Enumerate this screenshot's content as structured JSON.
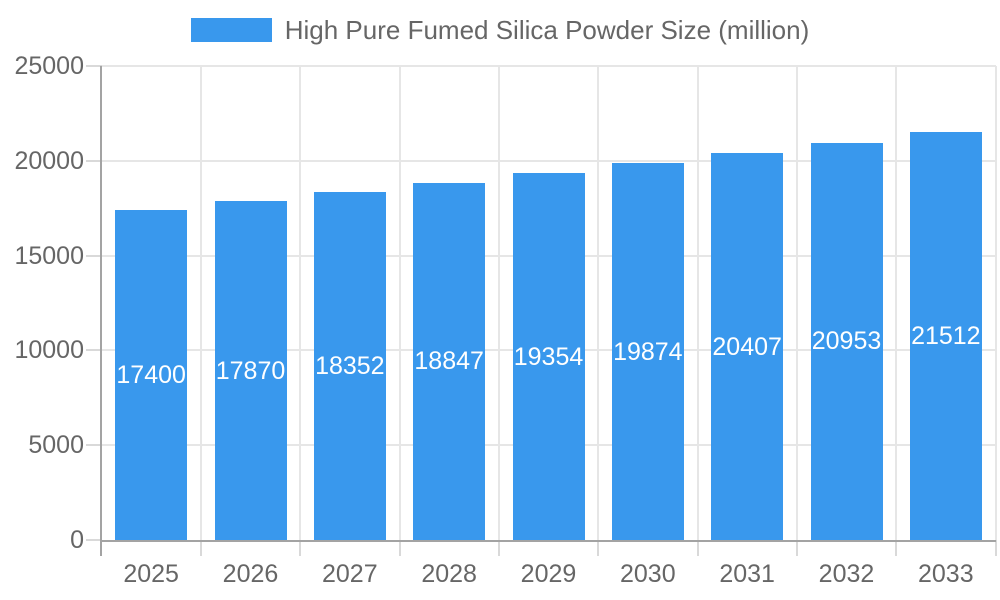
{
  "chart_data": {
    "type": "bar",
    "title": "High Pure Fumed Silica Powder Size (million)",
    "categories": [
      "2025",
      "2026",
      "2027",
      "2028",
      "2029",
      "2030",
      "2031",
      "2032",
      "2033"
    ],
    "values": [
      17400,
      17870,
      18352,
      18847,
      19354,
      19874,
      20407,
      20953,
      21512
    ],
    "xlabel": "",
    "ylabel": "",
    "ylim": [
      0,
      25000
    ],
    "yticks": [
      0,
      5000,
      10000,
      15000,
      20000,
      25000
    ],
    "grid": true,
    "legend_position": "top-center",
    "value_label_position": "inside-center",
    "colors": {
      "bar": "#3998ed",
      "value_label": "#ffffff",
      "axis_text": "#666666",
      "legend_text": "#666666",
      "gridline": "#e6e6e6",
      "tick": "#d9d9d9",
      "axis_border": "#a3a3a3",
      "background": "#ffffff"
    }
  }
}
